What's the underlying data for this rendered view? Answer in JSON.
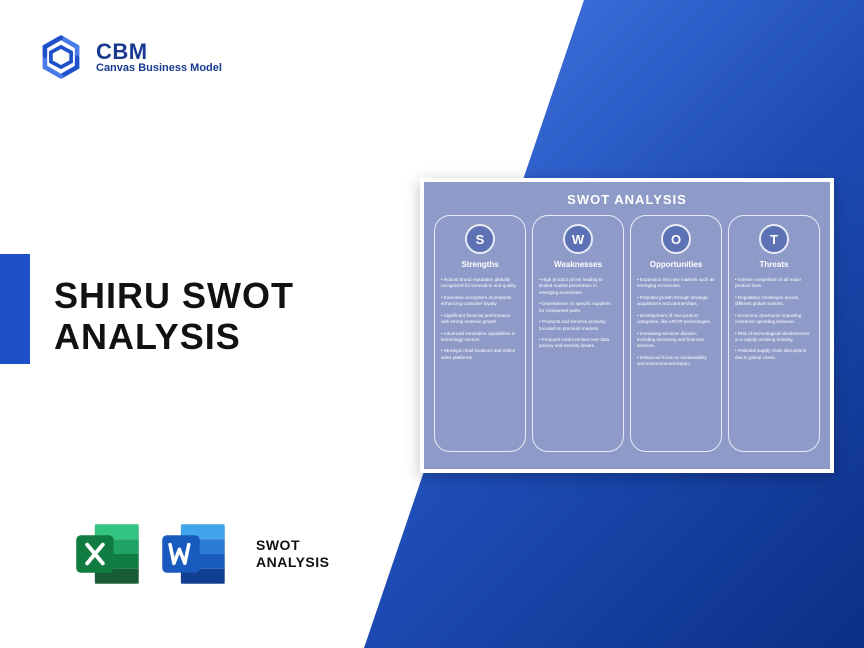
{
  "logo": {
    "title": "CBM",
    "subtitle": "Canvas Business Model",
    "mark_color_a": "#1e50c9",
    "mark_color_b": "#4a7ce8"
  },
  "accent_bar_color": "#1e50c9",
  "triangle_gradient": [
    "#4a7ce8",
    "#1e4db7",
    "#0b2f85"
  ],
  "main_title_line1": "SHIRU SWOT",
  "main_title_line2": "ANALYSIS",
  "bottom_icons": {
    "excel_color_dark": "#107c41",
    "excel_color_light": "#21a366",
    "word_color_dark": "#185abd",
    "word_color_light": "#41a5ee",
    "label_line1": "SWOT",
    "label_line2": "ANALYSIS"
  },
  "swot_card": {
    "background": "#8e9bc8",
    "circle_fill": "#5d72b4",
    "border_color": "#e8ebf5",
    "title": "SWOT ANALYSIS",
    "columns": [
      {
        "letter": "S",
        "label": "Strengths",
        "items": [
          "Robust brand reputation globally recognized for innovation and quality.",
          "Extensive ecosystem of products enhancing customer loyalty.",
          "Significant financial performance with strong revenue growth.",
          "Advanced innovation capabilities in technology sectors.",
          "Strategic retail locations and online sales platforms."
        ]
      },
      {
        "letter": "W",
        "label": "Weaknesses",
        "items": [
          "High product prices leading to limited market penetration in emerging economies.",
          "Dependence on specific suppliers for component parts.",
          "Products and services primarily focused on premium markets.",
          "Frequent controversies over data privacy and security issues."
        ]
      },
      {
        "letter": "O",
        "label": "Opportunities",
        "items": [
          "Expansion into new markets such as emerging economies.",
          "Potential growth through strategic acquisitions and partnerships.",
          "Development of new product categories, like AR/VR technologies.",
          "Increasing services division, including streaming and financial services.",
          "Enhanced focus on sustainability and environmental impact."
        ]
      },
      {
        "letter": "T",
        "label": "Threats",
        "items": [
          "Intense competition in all major product lines.",
          "Regulatory challenges across different global markets.",
          "Economic downturns impacting consumer spending behavior.",
          "Risk of technological obsolescence in a rapidly evolving industry.",
          "Potential supply chain disruptions due to global crises."
        ]
      }
    ]
  }
}
